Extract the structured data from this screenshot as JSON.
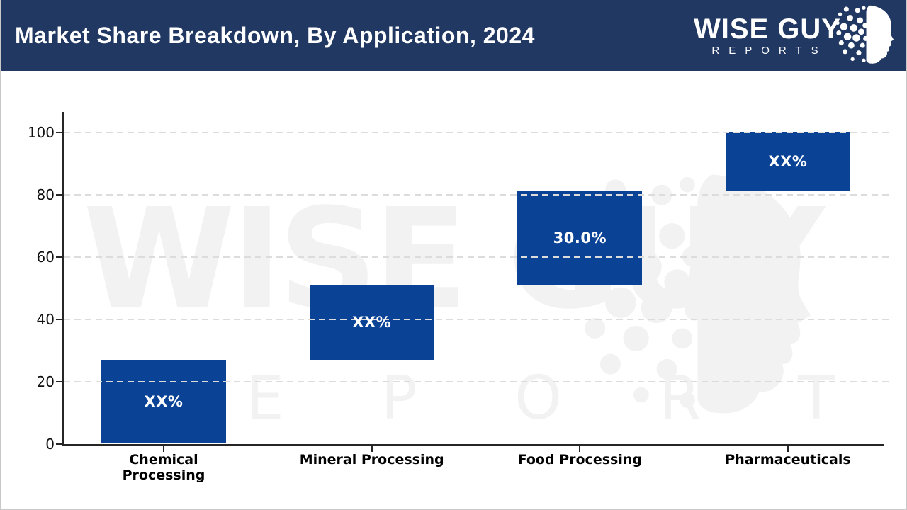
{
  "header": {
    "title": "Market Share Breakdown, By Application, 2024",
    "background_color": "#213862",
    "logo": {
      "line1": "WISE GUY",
      "line2": "REPORTS"
    }
  },
  "watermark": {
    "line1": "WISE GUY",
    "line2": "R E P O R T S"
  },
  "chart_data": {
    "type": "bar",
    "subtype": "waterfall",
    "title": "Market Share Breakdown, By Application, 2024",
    "categories": [
      "Chemical Processing",
      "Mineral Processing",
      "Food Processing",
      "Pharmaceuticals"
    ],
    "categories_display": [
      "Chemical\nProcessing",
      "Mineral Processing",
      "Food Processing",
      "Pharmaceuticals"
    ],
    "segments": [
      {
        "category": "Chemical Processing",
        "start": 0,
        "end": 27,
        "value": 27,
        "label": "XX%"
      },
      {
        "category": "Mineral Processing",
        "start": 27,
        "end": 51,
        "value": 24,
        "label": "XX%"
      },
      {
        "category": "Food Processing",
        "start": 51,
        "end": 81,
        "value": 30,
        "label": "30.0%"
      },
      {
        "category": "Pharmaceuticals",
        "start": 81,
        "end": 100,
        "value": 19,
        "label": "XX%"
      }
    ],
    "yticks": [
      0,
      20,
      40,
      60,
      80,
      100
    ],
    "ylim": [
      0,
      106
    ],
    "grid": "horizontal-dashed",
    "legend_position": "none",
    "bar_color": "#0a4296",
    "bar_label_color": "#ffffff",
    "axis_color": "#262626",
    "grid_color": "#dcdcdc"
  }
}
